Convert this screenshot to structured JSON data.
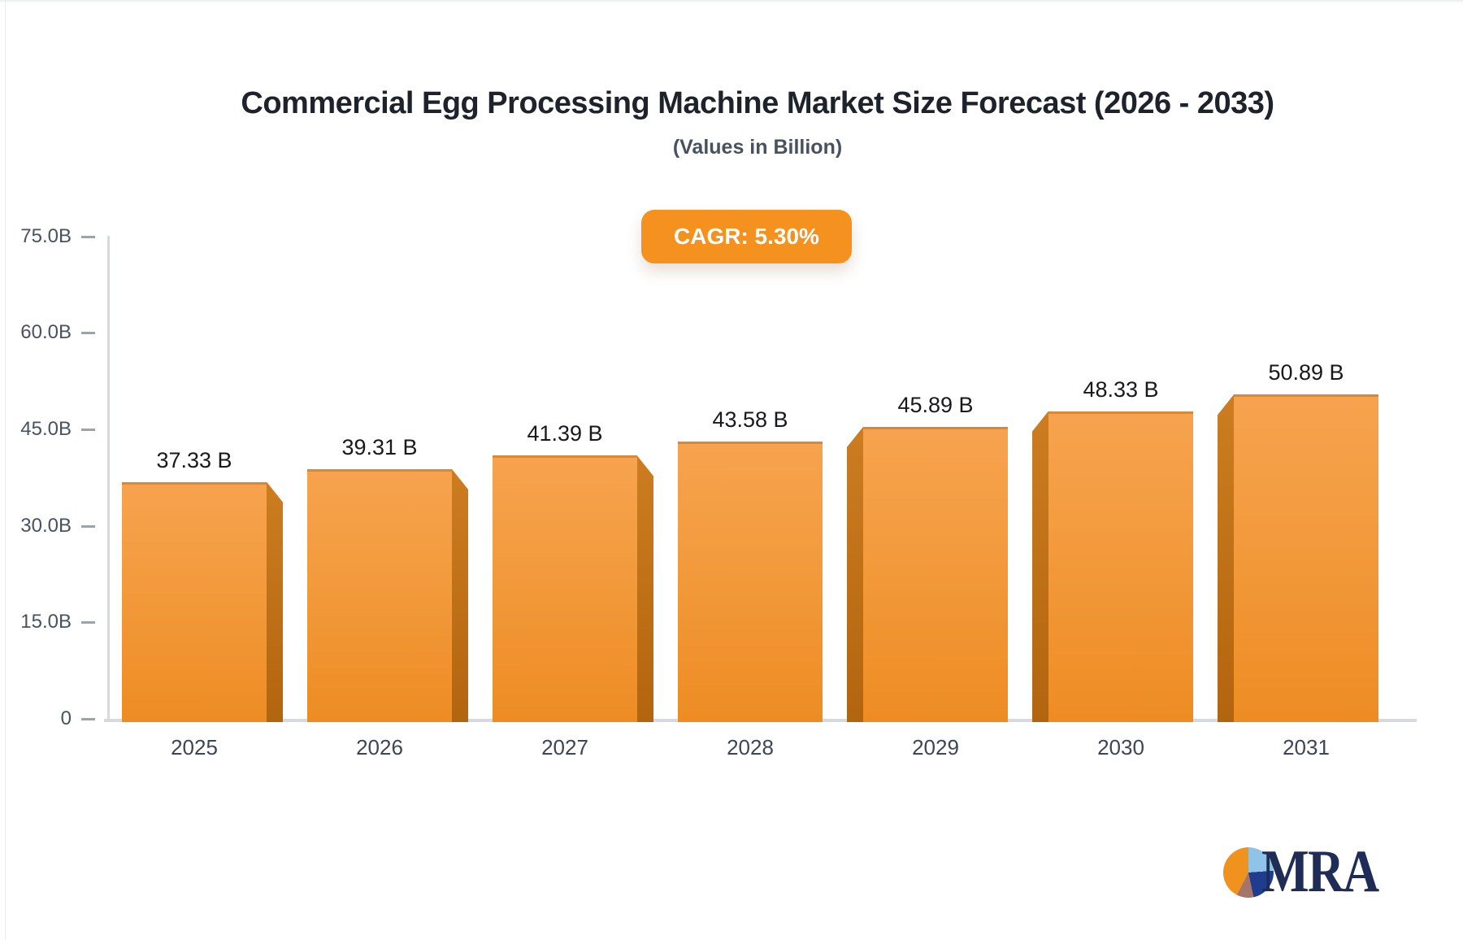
{
  "page": {
    "title": "Commercial Egg Processing Machine Market Size Forecast (2026 - 2033)",
    "subtitle": "(Values in Billion)",
    "cagr_badge": "CAGR: 5.30%"
  },
  "chart_data": {
    "type": "bar",
    "title": "Commercial Egg Processing Machine Market Size Forecast (2026 - 2033)",
    "subtitle": "(Values in Billion)",
    "xlabel": "",
    "ylabel": "",
    "categories": [
      "2025",
      "2026",
      "2027",
      "2028",
      "2029",
      "2030",
      "2031"
    ],
    "values": [
      37.33,
      39.31,
      41.39,
      43.58,
      45.89,
      48.33,
      50.89
    ],
    "value_labels": [
      "37.33 B",
      "39.31 B",
      "41.39 B",
      "43.58 B",
      "45.89 B",
      "48.33 B",
      "50.89 B"
    ],
    "ylim": [
      0,
      75
    ],
    "yticks": [
      {
        "label": "75.0B",
        "value": 75
      },
      {
        "label": "60.0B",
        "value": 60
      },
      {
        "label": "45.0B",
        "value": 45
      },
      {
        "label": "30.0B",
        "value": 30
      },
      {
        "label": "15.0B",
        "value": 15
      },
      {
        "label": "0",
        "value": 0
      }
    ],
    "grid": false,
    "legend": false,
    "bar_style": "3d-perspective"
  },
  "badge": {
    "label": "CAGR: 5.30%"
  },
  "logo": {
    "text": "MRA"
  },
  "colors": {
    "title": "#1d222b",
    "subtitle": "#47515f",
    "badge_bg": "#f5921f",
    "bar_face_top": "#f7a34f",
    "bar_face_bottom": "#ee8c23",
    "bar_side_top": "#cd7d20",
    "bar_side_bottom": "#b2650f",
    "axis_line": "#d6d9dd",
    "tick": "#9ca3ac",
    "y_label": "#49525f",
    "x_label": "#3d4655",
    "value_label": "#17191d",
    "logo_text": "#1f2c56",
    "pie_orange": "#f0921e",
    "pie_blue": "#8fc4e8",
    "pie_navy": "#1f3c8e",
    "pie_brown": "#a3756b"
  }
}
